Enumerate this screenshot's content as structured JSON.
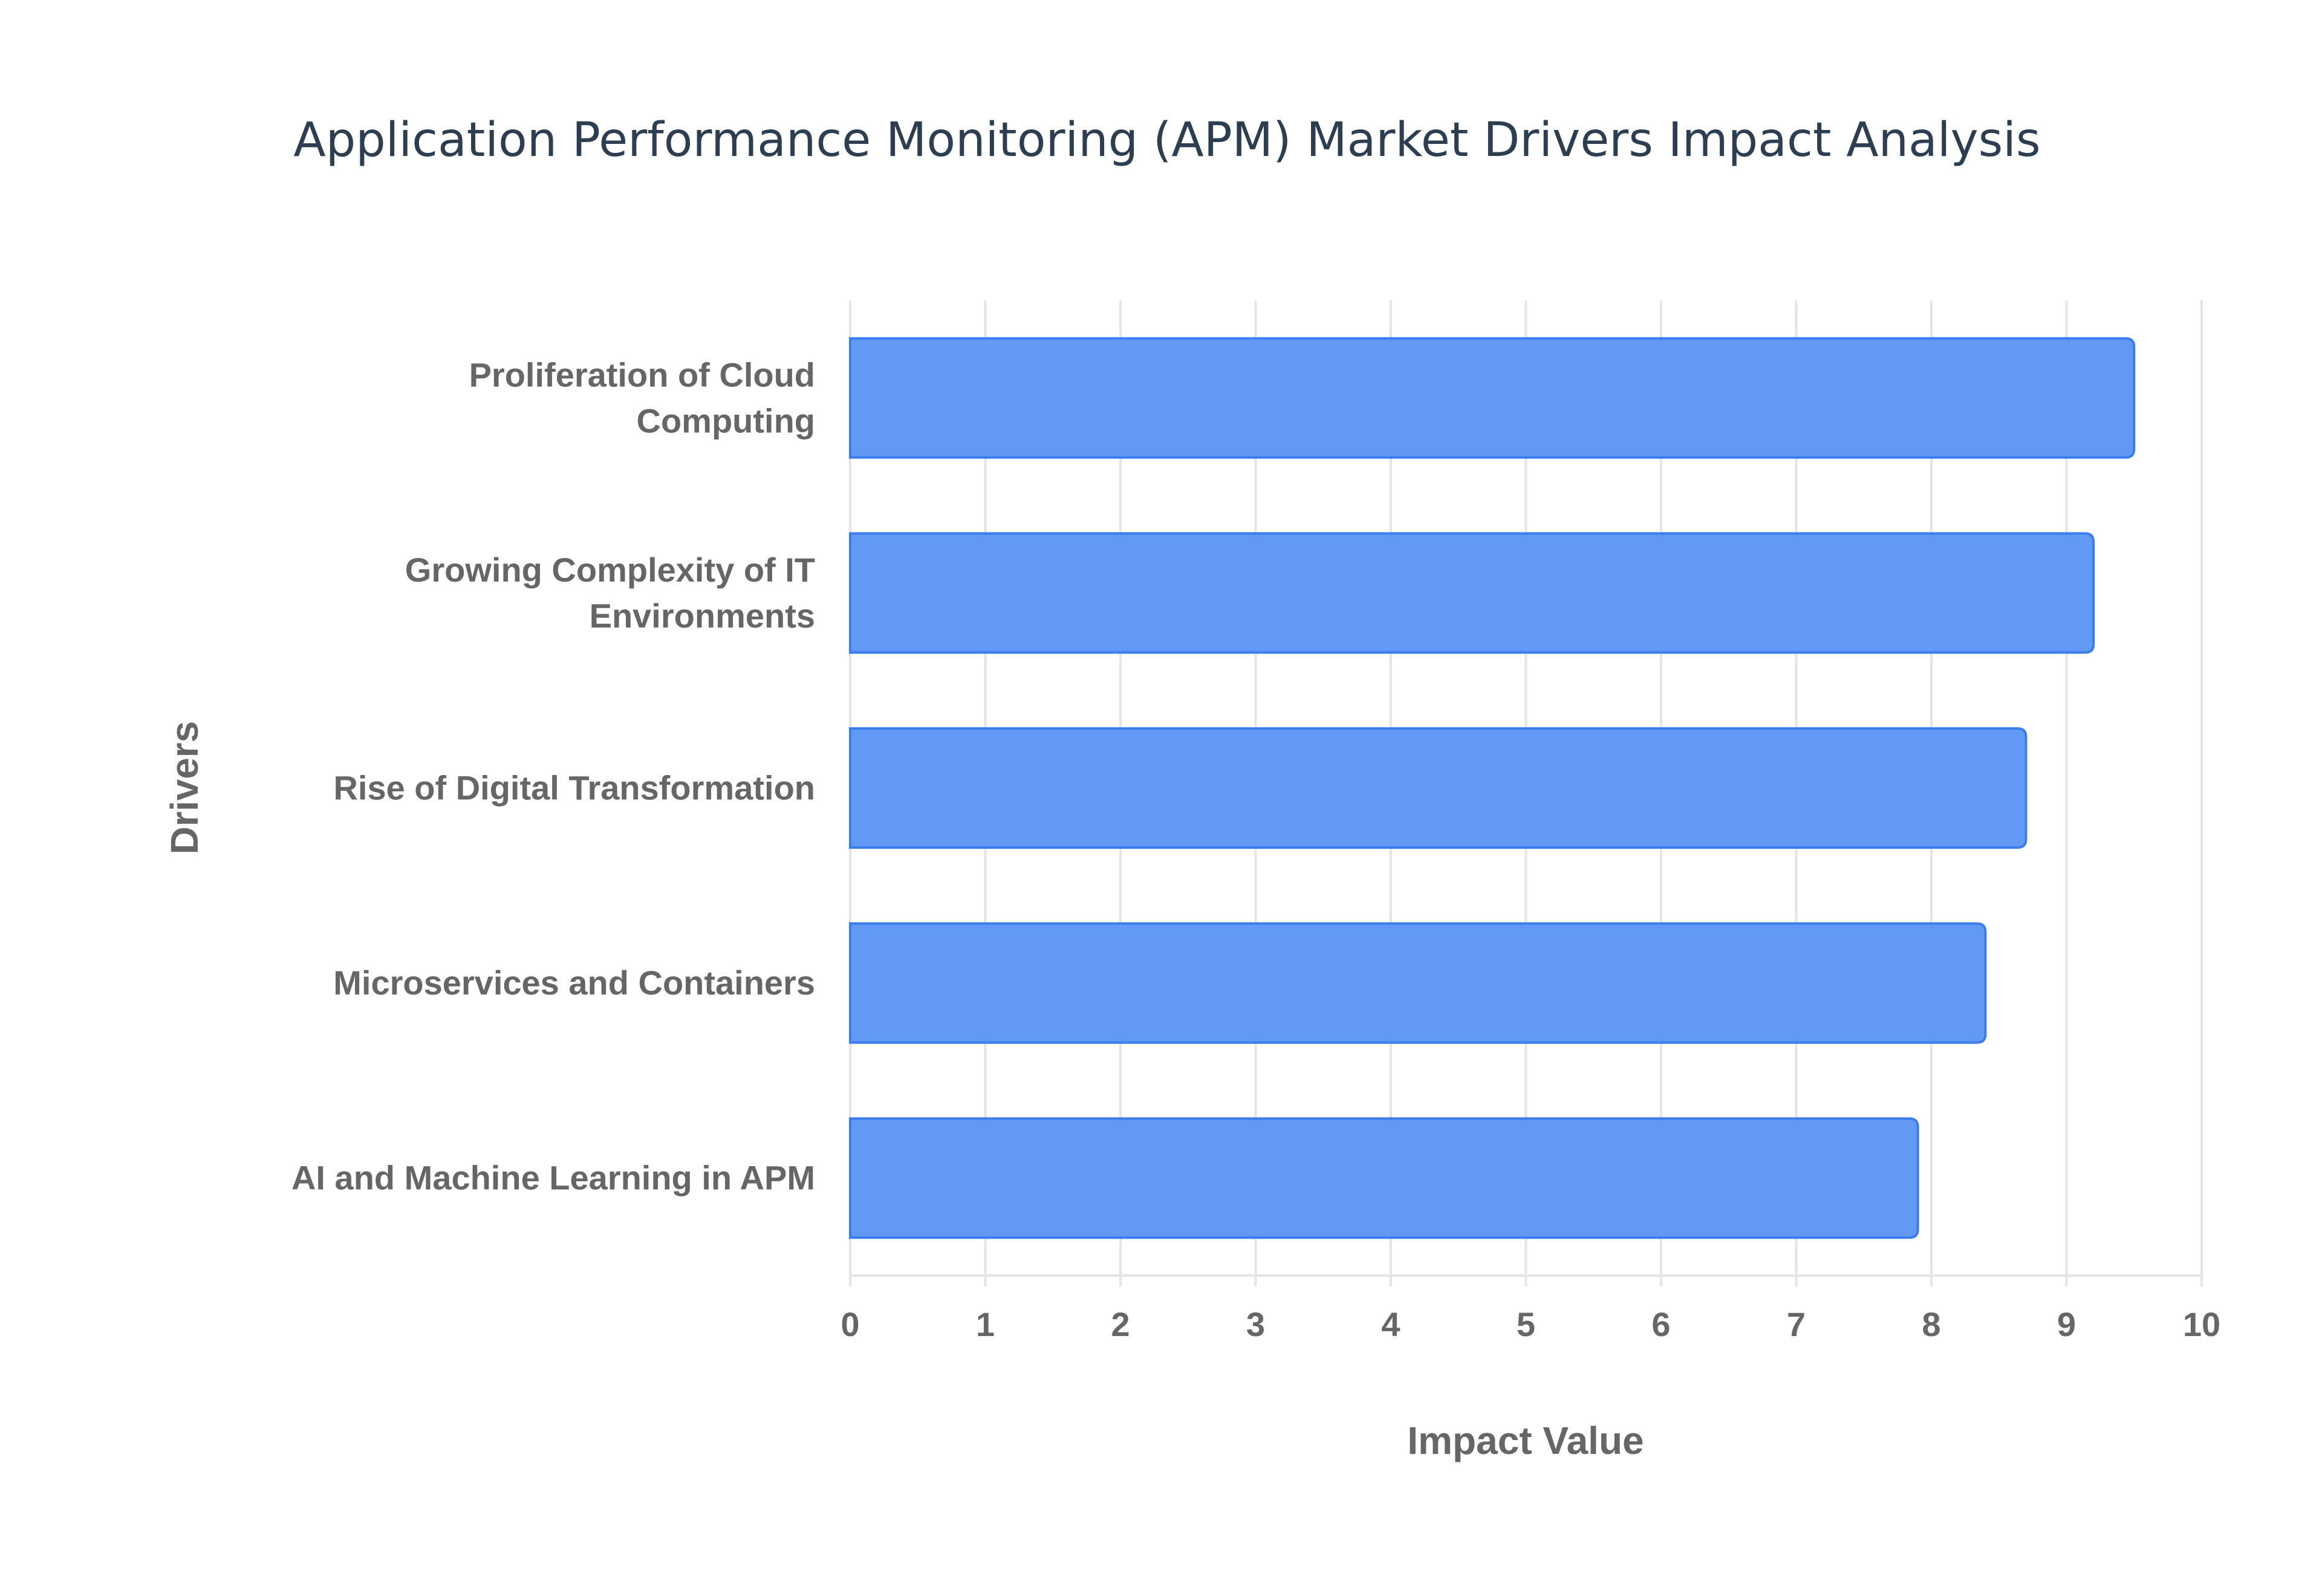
{
  "chart_data": {
    "type": "bar",
    "orientation": "horizontal",
    "title": "Application Performance Monitoring (APM) Market Drivers Impact Analysis",
    "xlabel": "Impact Value",
    "ylabel": "Drivers",
    "categories": [
      "Proliferation of Cloud Computing",
      "Growing Complexity of IT Environments",
      "Rise of Digital Transformation",
      "Microservices and Containers",
      "AI and Machine Learning in APM"
    ],
    "category_label_lines": [
      [
        "Proliferation of Cloud",
        "Computing"
      ],
      [
        "Growing Complexity of IT",
        "Environments"
      ],
      [
        "Rise of Digital Transformation"
      ],
      [
        "Microservices and Containers"
      ],
      [
        "AI and Machine Learning in APM"
      ]
    ],
    "values": [
      9.5,
      9.2,
      8.7,
      8.4,
      7.9
    ],
    "xlim": [
      0,
      10
    ],
    "xticks": [
      "0",
      "1",
      "2",
      "3",
      "4",
      "5",
      "6",
      "7",
      "8",
      "9",
      "10"
    ],
    "grid": true,
    "legend": "none",
    "colors": {
      "bar_fill": "#6199f5",
      "bar_border": "#3b7ded",
      "grid": "#e5e5e5",
      "text": "#666666",
      "title": "#2c3e50"
    }
  }
}
